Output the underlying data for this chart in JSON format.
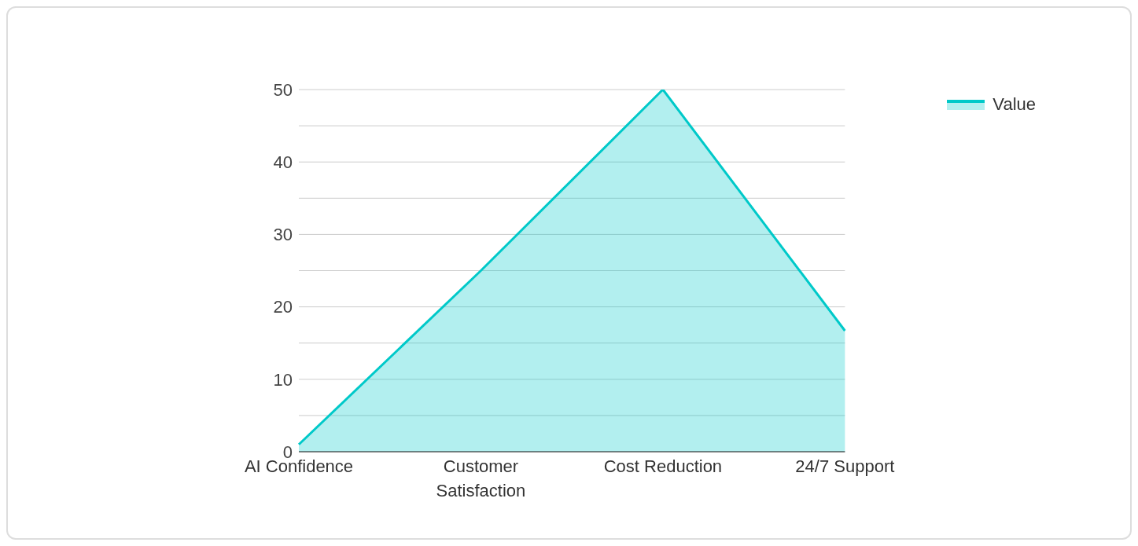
{
  "chart_data": {
    "type": "area",
    "categories": [
      "AI Confidence",
      "Customer Satisfaction",
      "Cost Reduction",
      "24/7 Support"
    ],
    "series": [
      {
        "name": "Value",
        "color": "#00c9c9",
        "values": [
          1,
          25,
          50,
          16.7
        ]
      }
    ],
    "ylim": [
      0,
      50
    ],
    "yticks": [
      0,
      {
        "value": 5,
        "label": null
      },
      10,
      {
        "value": 15,
        "label": null
      },
      20,
      {
        "value": 25,
        "label": null
      },
      30,
      {
        "value": 35,
        "label": null
      },
      40,
      {
        "value": 45,
        "label": null
      },
      50
    ],
    "grid": "y",
    "legend": "top right"
  }
}
